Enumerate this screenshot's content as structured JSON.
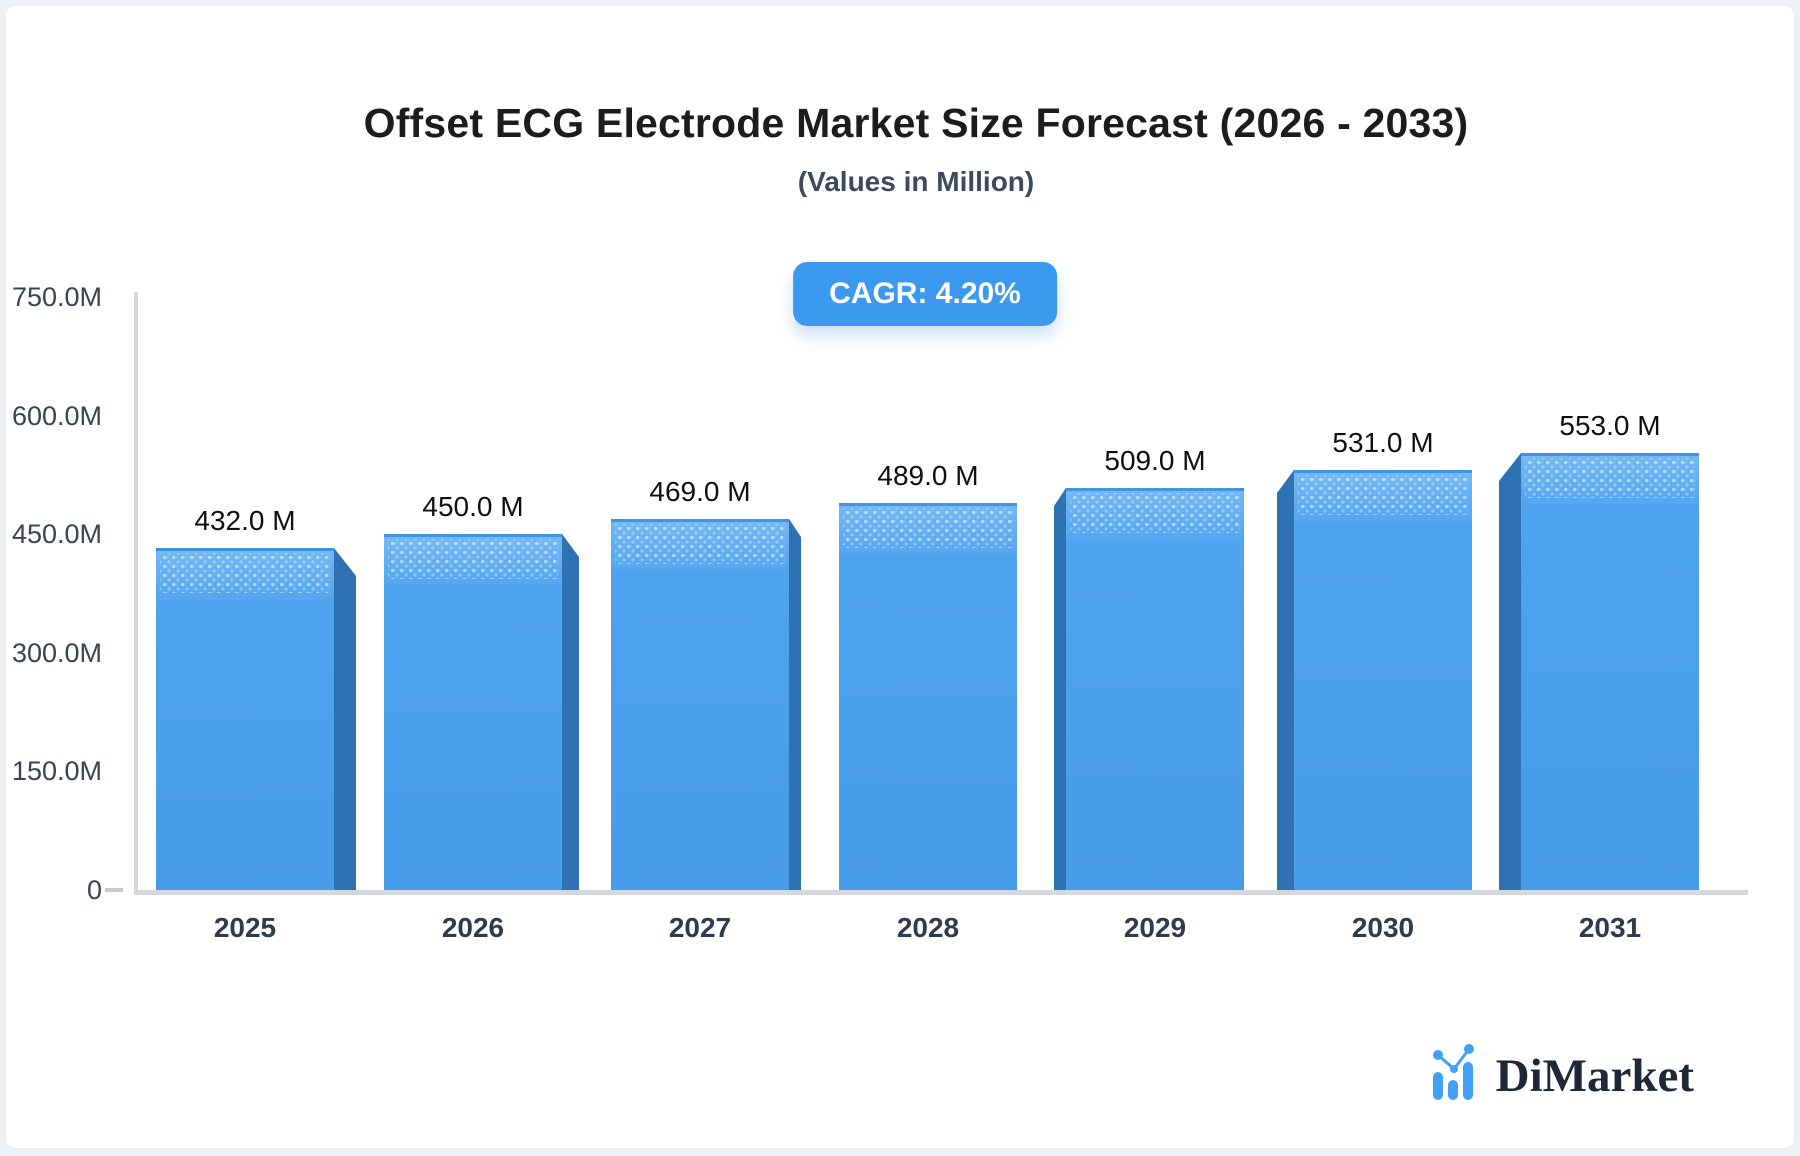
{
  "header": {
    "title": "Offset ECG Electrode Market Size Forecast (2026 - 2033)",
    "subtitle": "(Values in Million)",
    "cagr_badge": "CAGR: 4.20%"
  },
  "chart_data": {
    "type": "bar",
    "title": "Offset ECG Electrode Market Size Forecast (2026 - 2033)",
    "subtitle": "(Values in Million)",
    "cagr_pct": 4.2,
    "categories": [
      "2025",
      "2026",
      "2027",
      "2028",
      "2029",
      "2030",
      "2031"
    ],
    "values": [
      432.0,
      450.0,
      469.0,
      489.0,
      509.0,
      531.0,
      553.0
    ],
    "value_labels": [
      "432.0 M",
      "450.0 M",
      "469.0 M",
      "489.0 M",
      "509.0 M",
      "531.0 M",
      "553.0 M"
    ],
    "unit": "M",
    "y_axis": {
      "min": 0,
      "max": 750,
      "ticks": [
        {
          "label": "750.0M",
          "value": 750
        },
        {
          "label": "600.0M",
          "value": 600
        },
        {
          "label": "450.0M",
          "value": 450
        },
        {
          "label": "300.0M",
          "value": 300
        },
        {
          "label": "150.0M",
          "value": 150
        },
        {
          "label": "0",
          "value": 0
        }
      ]
    },
    "grid": false,
    "legend": false,
    "bar_style": "3d",
    "colors": {
      "bar_front": "#4DA2EE",
      "bar_side": "#2E72B4",
      "bar_top_edge": "#3E93E3",
      "badge": "#3B99F0",
      "axis": "#D4D7DB"
    }
  },
  "footer": {
    "logo_text": "DiMarket",
    "logo_icon": "bar-chart-logo-icon"
  }
}
